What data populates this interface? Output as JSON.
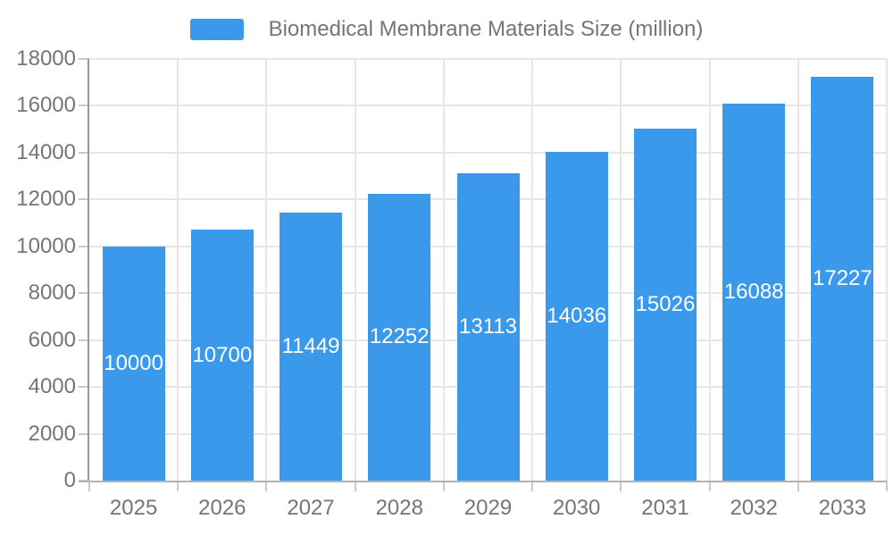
{
  "legend": {
    "series_label": "Biomedical Membrane Materials Size (million)",
    "swatch_color": "#3B99EC"
  },
  "chart_data": {
    "type": "bar",
    "title": "Biomedical Membrane Materials Size (million)",
    "categories": [
      "2025",
      "2026",
      "2027",
      "2028",
      "2029",
      "2030",
      "2031",
      "2032",
      "2033"
    ],
    "series": [
      {
        "name": "Biomedical Membrane Materials Size (million)",
        "values": [
          10000,
          10700,
          11449,
          12252,
          13113,
          14036,
          15026,
          16088,
          17227
        ]
      }
    ],
    "bar_value_labels": [
      "10000",
      "10700",
      "11449",
      "12252",
      "13113",
      "14036",
      "15026",
      "16088",
      "17227"
    ],
    "xlabel": "",
    "ylabel": "",
    "ylim": [
      0,
      18000
    ],
    "y_tick_step": 2000,
    "y_tick_labels": [
      "0",
      "2000",
      "4000",
      "6000",
      "8000",
      "10000",
      "12000",
      "14000",
      "16000",
      "18000"
    ],
    "grid": true,
    "legend_position": "top-center",
    "value_label_position": "inside-center",
    "colors": {
      "bar": "#3B99EC",
      "bar_value_text": "#FFFFFF",
      "axis_text": "#757575",
      "grid_line": "#E6E6E6",
      "x_axis_line": "#B3B3B3",
      "y_axis_line": "#999999",
      "tick_mark": "#C9C9C9"
    }
  }
}
